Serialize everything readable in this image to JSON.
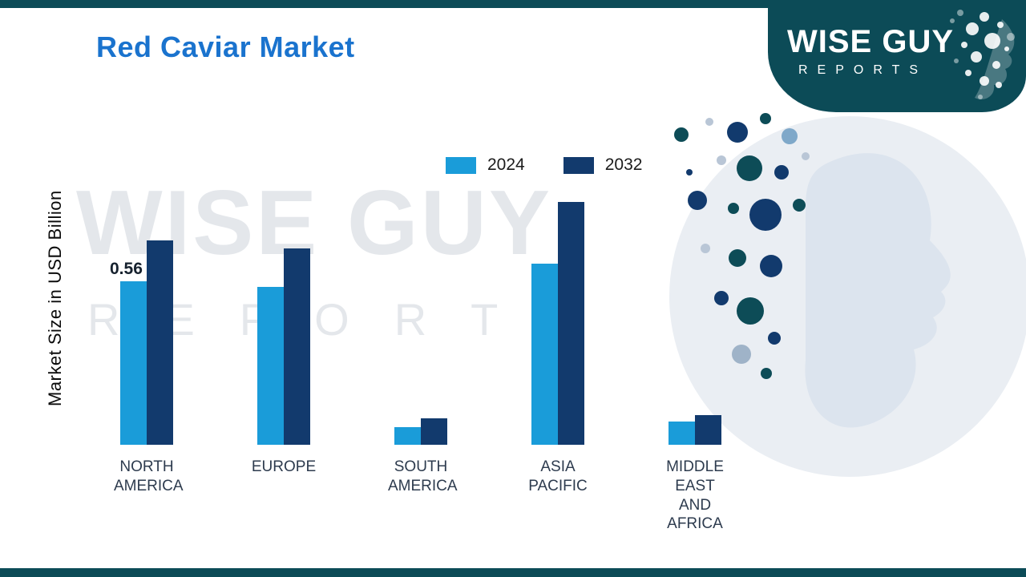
{
  "page": {
    "title": "Red Caviar Market"
  },
  "logo": {
    "line1": "WISE GUY",
    "line2": "REPORTS"
  },
  "watermark": {
    "line1": "WISE GUY",
    "line2": "REPORTS"
  },
  "chart_data": {
    "type": "bar",
    "title": "Red Caviar Market",
    "ylabel": "Market Size in USD Billion",
    "unit": "USD Billion",
    "categories": [
      "NORTH AMERICA",
      "EUROPE",
      "SOUTH AMERICA",
      "ASIA PACIFIC",
      "MIDDLE EAST AND AFRICA"
    ],
    "series": [
      {
        "name": "2024",
        "color": "#1a9cd9",
        "values": [
          0.56,
          0.54,
          0.06,
          0.62,
          0.08
        ]
      },
      {
        "name": "2032",
        "color": "#123a6d",
        "values": [
          0.7,
          0.67,
          0.09,
          0.83,
          0.1
        ]
      }
    ],
    "annotations": [
      {
        "category": "NORTH AMERICA",
        "series": "2024",
        "label": "0.56"
      }
    ],
    "ylim": [
      0,
      0.9
    ],
    "grid": false,
    "legend_position": "top-center"
  },
  "colors": {
    "accent_light_blue": "#1a9cd9",
    "accent_navy": "#123a6d",
    "brand_teal": "#0c4b57",
    "title_blue": "#1a73ce"
  }
}
